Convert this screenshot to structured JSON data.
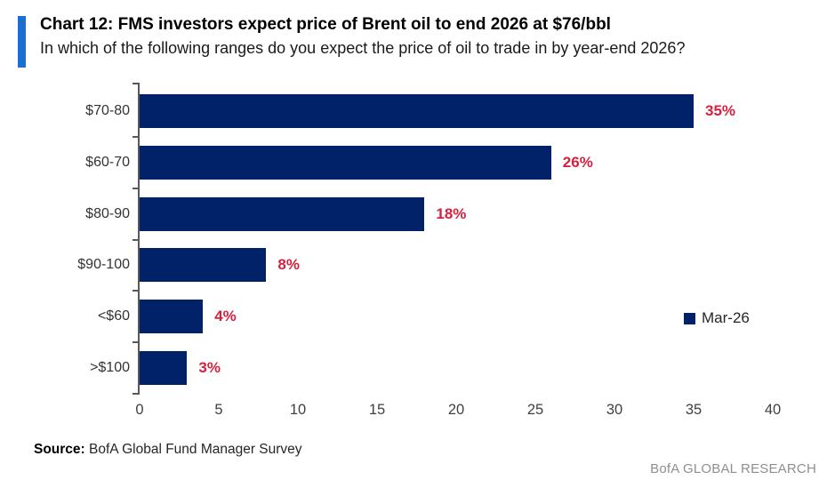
{
  "header": {
    "title": "Chart 12: FMS investors expect price of Brent oil to end 2026 at $76/bbl",
    "subtitle": "In which of the following ranges do you expect the price of oil to trade in by year-end 2026?"
  },
  "chart_data": {
    "type": "bar",
    "orientation": "horizontal",
    "categories": [
      "$70-80",
      "$60-70",
      "$80-90",
      "$90-100",
      "<$60",
      ">$100"
    ],
    "series": [
      {
        "name": "Mar-26",
        "values": [
          35,
          26,
          18,
          8,
          4,
          3
        ]
      }
    ],
    "data_labels": [
      "35%",
      "26%",
      "18%",
      "8%",
      "4%",
      "3%"
    ],
    "x_ticks": [
      0,
      5,
      10,
      15,
      20,
      25,
      30,
      35,
      40
    ],
    "xlim": [
      0,
      40
    ],
    "xlabel": "",
    "ylabel": "",
    "grid": false,
    "legend_position": "right"
  },
  "colors": {
    "accent_blue": "#1C6FD2",
    "bar_navy": "#012169",
    "label_red": "#D5213F",
    "axis_gray": "#595959"
  },
  "footer": {
    "source_label": "Source:",
    "source_text": " BofA Global Fund Manager Survey",
    "brand": "BofA GLOBAL RESEARCH"
  }
}
